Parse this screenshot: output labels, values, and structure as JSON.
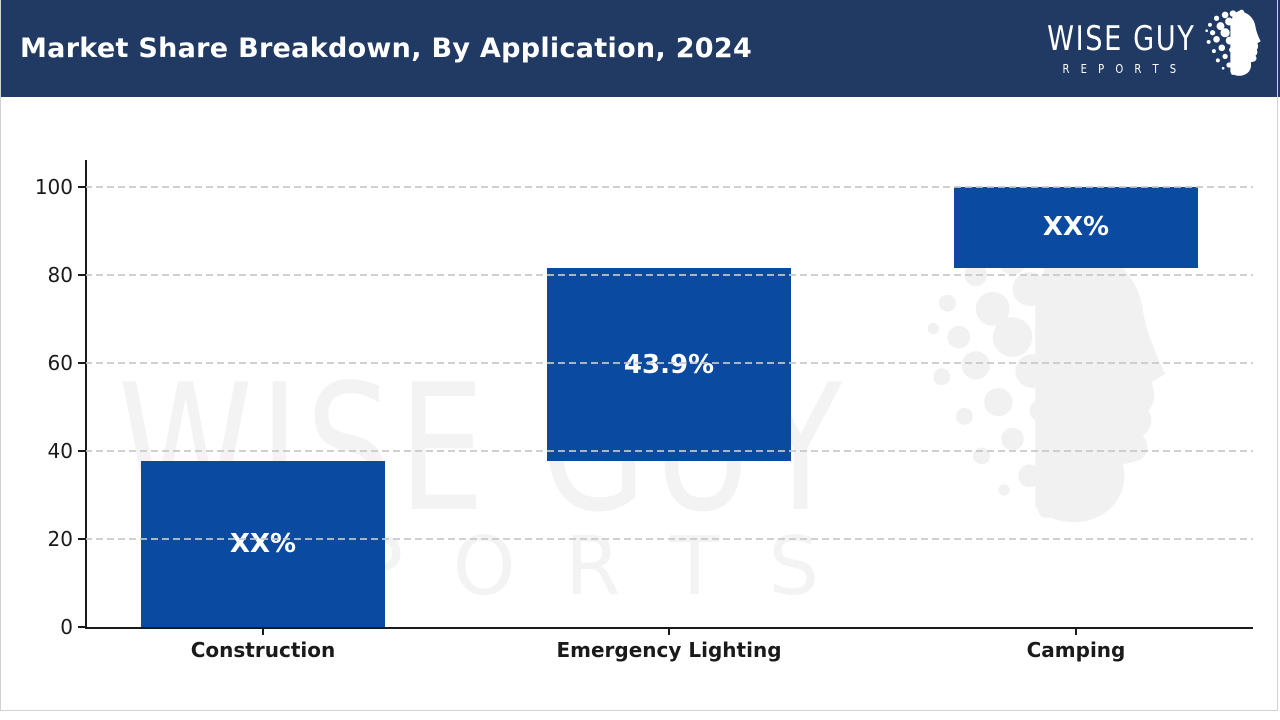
{
  "header": {
    "title": "Market Share Breakdown, By Application, 2024",
    "logo": {
      "line1": "WISE GUY",
      "line2": "R E P O R T S"
    }
  },
  "watermark": {
    "line1": "WISE GUY",
    "line2": "R E P O R T S"
  },
  "colors": {
    "header_bg": "#213a64",
    "bar": "#0b4aa1",
    "axis": "#1a1a1a",
    "grid": "#d4d4d4",
    "bar_label": "#ffffff",
    "watermark": "#f3f3f3"
  },
  "chart_data": {
    "type": "bar",
    "variant": "stacked_waterfall",
    "title": "Market Share Breakdown, By Application, 2024",
    "categories": [
      "Construction",
      "Emergency Lighting",
      "Camping"
    ],
    "segments": [
      {
        "category": "Construction",
        "start": 0,
        "end": 37.7,
        "label": "XX%"
      },
      {
        "category": "Emergency Lighting",
        "start": 37.7,
        "end": 81.6,
        "label": "43.9%"
      },
      {
        "category": "Camping",
        "start": 81.6,
        "end": 100,
        "label": "XX%"
      }
    ],
    "yticks": [
      0,
      20,
      40,
      60,
      80,
      100
    ],
    "ylim": [
      0,
      106
    ],
    "grid": "dashed-horizontal",
    "legend": "none",
    "bar_color": "#0b4aa1"
  }
}
